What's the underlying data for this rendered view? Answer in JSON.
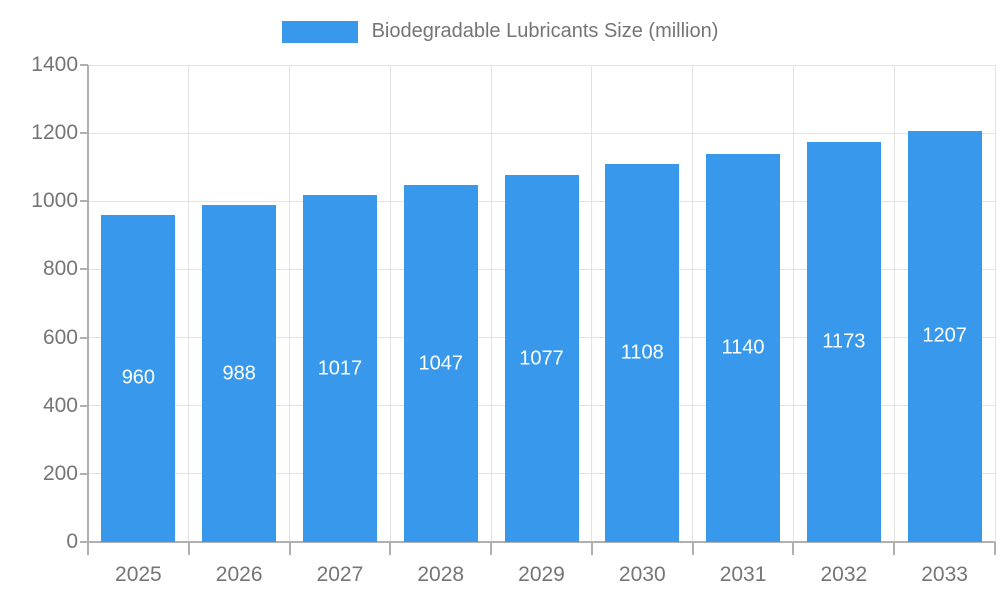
{
  "chart_data": {
    "type": "bar",
    "title": "",
    "legend": "Biodegradable Lubricants Size (million)",
    "legend_position": "top",
    "categories": [
      "2025",
      "2026",
      "2027",
      "2028",
      "2029",
      "2030",
      "2031",
      "2032",
      "2033"
    ],
    "values": [
      960,
      988,
      1017,
      1047,
      1077,
      1108,
      1140,
      1173,
      1207
    ],
    "xlabel": "",
    "ylabel": "",
    "ylim": [
      0,
      1400
    ],
    "yticks": [
      0,
      200,
      400,
      600,
      800,
      1000,
      1200,
      1400
    ],
    "grid": true,
    "bar_color": "#3899EC",
    "bar_label_color": "#ffffff",
    "axis_text_color": "#757575",
    "grid_color": "#e3e3e3",
    "axis_line_color": "#b0b0b0",
    "background_color": "#ffffff"
  }
}
